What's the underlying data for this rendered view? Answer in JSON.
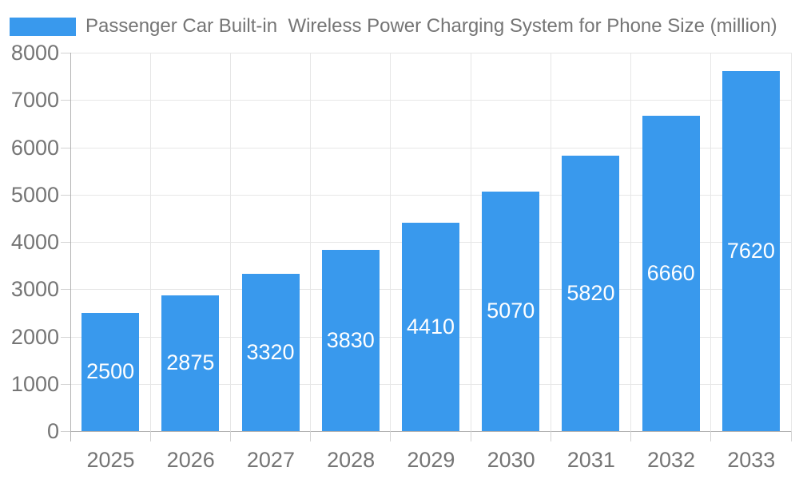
{
  "chart_data": {
    "type": "bar",
    "title": "Passenger Car Built-in  Wireless Power Charging System for Phone Size (million)",
    "series_name": "Passenger Car Built-in  Wireless Power Charging System for Phone Size (million)",
    "legend_position": "top-left",
    "categories": [
      "2025",
      "2026",
      "2027",
      "2028",
      "2029",
      "2030",
      "2031",
      "2032",
      "2033"
    ],
    "values": [
      2500,
      2875,
      3320,
      3830,
      4410,
      5070,
      5820,
      6660,
      7620
    ],
    "xlabel": "",
    "ylabel": "",
    "ylim": [
      0,
      8000
    ],
    "yticks": [
      0,
      1000,
      2000,
      3000,
      4000,
      5000,
      6000,
      7000,
      8000
    ],
    "grid": true,
    "bar_color": "#3999ED",
    "value_label_color": "#FFFFFF",
    "axis_text_color": "#757575",
    "grid_color": "#E6E6E6",
    "axis_line_color": "#B3B3B3"
  }
}
